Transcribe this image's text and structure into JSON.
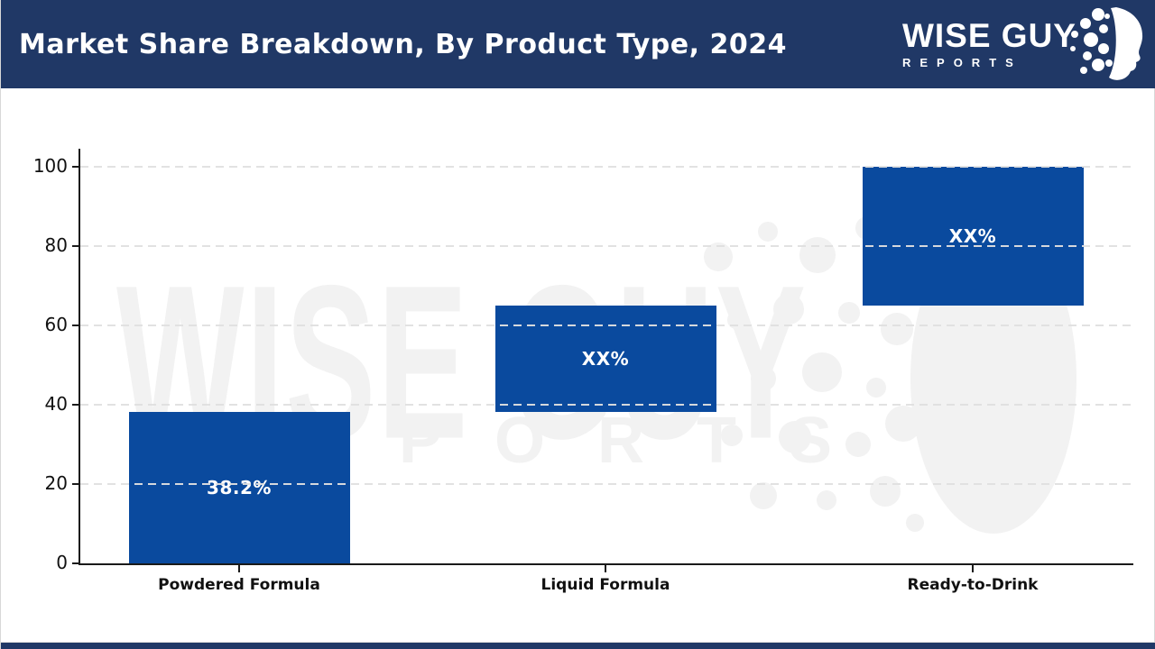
{
  "header": {
    "title": "Market Share Breakdown, By Product Type, 2024",
    "bg_color": "#203866",
    "logo": {
      "line1": "WISE GUY",
      "line2": "REPORTS"
    }
  },
  "watermark": {
    "line1": "WISE GUY",
    "line2": "REPORTS"
  },
  "chart_data": {
    "type": "bar",
    "subtype": "waterfall-floating-bars",
    "title": "Market Share Breakdown, By Product Type, 2024",
    "categories": [
      "Powdered Formula",
      "Liquid Formula",
      "Ready-to-Drink"
    ],
    "segments": [
      {
        "category": "Powdered Formula",
        "start": 0,
        "end": 38.2,
        "label": "38.2%"
      },
      {
        "category": "Liquid Formula",
        "start": 38.2,
        "end": 65,
        "label": "XX%"
      },
      {
        "category": "Ready-to-Drink",
        "start": 65,
        "end": 100,
        "label": "XX%"
      }
    ],
    "xlabel": "",
    "ylabel": "",
    "yticks": [
      0,
      20,
      40,
      60,
      80,
      100
    ],
    "ylim": [
      0,
      105
    ],
    "bar_color": "#0a4a9e",
    "grid": "horizontal-dashed-over-bars",
    "legend": "none"
  }
}
